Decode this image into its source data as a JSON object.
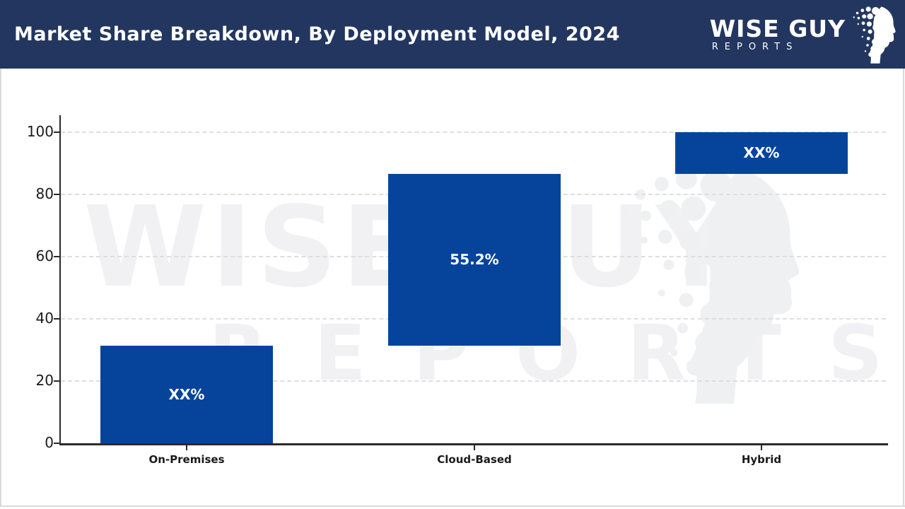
{
  "header": {
    "title": "Market Share Breakdown, By Deployment Model, 2024",
    "background_color": "#22365f",
    "text_color": "#ffffff",
    "logo": {
      "line1": "WISE GUY",
      "line2": "REPORTS",
      "icon": "dot-face-profile-icon"
    }
  },
  "watermark": {
    "line1": "WISE GUY",
    "line2": "REPORTS",
    "icon": "dot-face-profile-icon",
    "color": "#f1f1f3"
  },
  "chart_data": {
    "type": "bar",
    "subtype": "floating-segment-waterfall",
    "title": "Market Share Breakdown, By Deployment Model, 2024",
    "categories": [
      "On-Premises",
      "Cloud-Based",
      "Hybrid"
    ],
    "segments": [
      {
        "category": "On-Premises",
        "start": 0,
        "end": 31.4,
        "label": "XX%"
      },
      {
        "category": "Cloud-Based",
        "start": 31.4,
        "end": 86.6,
        "label": "55.2%"
      },
      {
        "category": "Hybrid",
        "start": 86.6,
        "end": 100,
        "label": "XX%"
      }
    ],
    "xlabel": "",
    "ylabel": "",
    "ylim": [
      0,
      100
    ],
    "yticks": [
      0,
      20,
      40,
      60,
      80,
      100
    ],
    "grid": {
      "horizontal": true,
      "style": "dashed",
      "color": "#dedede"
    },
    "legend": "none",
    "bar_color": "#06449c",
    "bar_label_color": "#ffffff",
    "axis_color": "#2a2a2a",
    "tick_label_color": "#1a1a1a"
  }
}
